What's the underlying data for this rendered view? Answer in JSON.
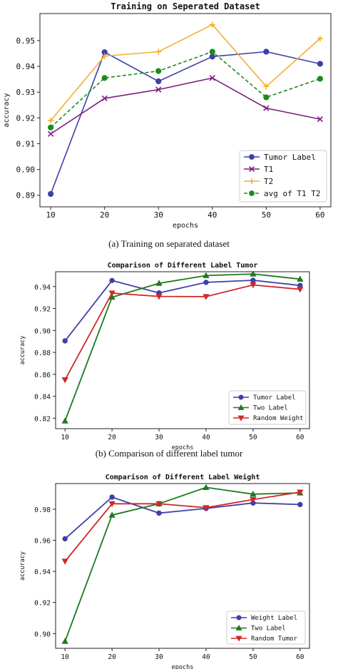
{
  "figure": {
    "captions": [
      "(a) Training on separated dataset",
      "(b) Comparison of different label tumor"
    ]
  },
  "chart_data": [
    {
      "type": "line",
      "title": "Training on Seperated Dataset",
      "xlabel": "epochs",
      "ylabel": "accuracy",
      "x": [
        10,
        20,
        30,
        40,
        50,
        60
      ],
      "xlim": [
        8,
        62
      ],
      "ylim": [
        0.8855,
        0.9605
      ],
      "yticks": [
        0.89,
        0.9,
        0.91,
        0.92,
        0.93,
        0.94,
        0.95
      ],
      "ytick_labels": [
        "0.89",
        "0.90",
        "0.91",
        "0.92",
        "0.93",
        "0.94",
        "0.95"
      ],
      "legend_position": "lower-right",
      "grid": false,
      "series": [
        {
          "name": "Tumor Label",
          "color": "#3f3fa8",
          "marker": "circle",
          "dash": "solid",
          "values": [
            0.8905,
            0.9455,
            0.9342,
            0.9438,
            0.9457,
            0.941
          ]
        },
        {
          "name": "T1",
          "color": "#7d1f7f",
          "marker": "x",
          "dash": "solid",
          "values": [
            0.9138,
            0.9276,
            0.931,
            0.9355,
            0.9238,
            0.9195
          ]
        },
        {
          "name": "T2",
          "color": "#f0b030",
          "marker": "plus",
          "dash": "solid",
          "values": [
            0.919,
            0.944,
            0.9457,
            0.9562,
            0.9322,
            0.9508
          ]
        },
        {
          "name": "avg of T1 T2",
          "color": "#1e8a1e",
          "marker": "circle",
          "dash": "dashed",
          "values": [
            0.9163,
            0.9355,
            0.9382,
            0.9457,
            0.928,
            0.9352
          ]
        }
      ]
    },
    {
      "type": "line",
      "title": "Comparison of Different Label Tumor",
      "xlabel": "epochs",
      "ylabel": "accuracy",
      "x": [
        10,
        20,
        30,
        40,
        50,
        60
      ],
      "xlim": [
        8,
        62
      ],
      "ylim": [
        0.8105,
        0.9535
      ],
      "yticks": [
        0.82,
        0.84,
        0.86,
        0.88,
        0.9,
        0.92,
        0.94
      ],
      "ytick_labels": [
        "0.82",
        "0.84",
        "0.86",
        "0.88",
        "0.90",
        "0.92",
        "0.94"
      ],
      "legend_position": "lower-right",
      "grid": false,
      "series": [
        {
          "name": "Tumor Label",
          "color": "#3f3fa8",
          "marker": "circle",
          "dash": "solid",
          "values": [
            0.8905,
            0.9455,
            0.9342,
            0.9438,
            0.9457,
            0.941
          ]
        },
        {
          "name": "Two Label",
          "color": "#1e7a1e",
          "marker": "triangle-up",
          "dash": "solid",
          "values": [
            0.8175,
            0.9303,
            0.943,
            0.95,
            0.9515,
            0.9468
          ]
        },
        {
          "name": "Random Weight",
          "color": "#d02828",
          "marker": "triangle-down",
          "dash": "solid",
          "values": [
            0.855,
            0.934,
            0.931,
            0.9308,
            0.9415,
            0.9375
          ]
        }
      ]
    },
    {
      "type": "line",
      "title": "Comparison of Different Label Weight",
      "xlabel": "epochs",
      "ylabel": "accuracy",
      "x": [
        10,
        20,
        30,
        40,
        50,
        60
      ],
      "xlim": [
        8,
        62
      ],
      "ylim": [
        0.8905,
        0.9965
      ],
      "yticks": [
        0.9,
        0.92,
        0.94,
        0.96,
        0.98
      ],
      "ytick_labels": [
        "0.90",
        "0.92",
        "0.94",
        "0.96",
        "0.98"
      ],
      "legend_position": "lower-right",
      "grid": false,
      "series": [
        {
          "name": "Weight Label",
          "color": "#3f3fa8",
          "marker": "circle",
          "dash": "solid",
          "values": [
            0.961,
            0.9878,
            0.9775,
            0.9805,
            0.984,
            0.983
          ]
        },
        {
          "name": "Two Label",
          "color": "#1e7a1e",
          "marker": "triangle-up",
          "dash": "solid",
          "values": [
            0.895,
            0.9762,
            0.9835,
            0.994,
            0.9897,
            0.9905
          ]
        },
        {
          "name": "Random Tumor",
          "color": "#d02828",
          "marker": "triangle-down",
          "dash": "solid",
          "values": [
            0.9465,
            0.9835,
            0.9835,
            0.981,
            0.9862,
            0.991
          ]
        }
      ]
    }
  ]
}
